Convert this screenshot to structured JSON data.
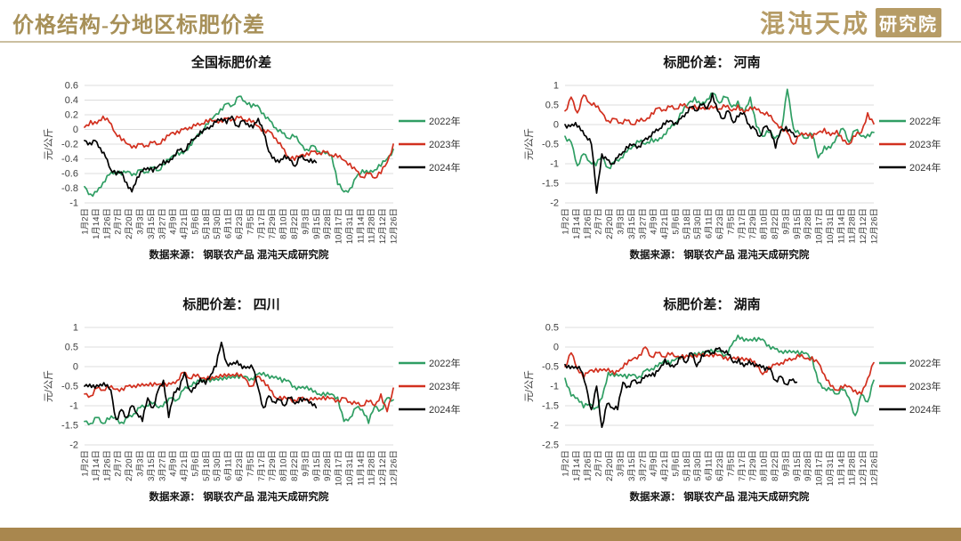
{
  "header": {
    "title": "价格结构-分地区标肥价差",
    "logo_text": "混沌天成",
    "logo_badge": "研究院"
  },
  "colors": {
    "accent_gold": "#A79058",
    "footer_band": "#A9874E",
    "series_2022": "#2F9E63",
    "series_2023": "#D2301F",
    "series_2024": "#000000",
    "gridline": "#DCDCDC"
  },
  "charts_shared": {
    "ylabel": "元/公斤",
    "legend": [
      "2022年",
      "2023年",
      "2024年"
    ],
    "source": "数据来源：  钢联农产品 混沌天成研究院",
    "categories": [
      "1月2日",
      "1月14日",
      "1月26日",
      "2月7日",
      "2月20日",
      "3月3日",
      "3月15日",
      "3月27日",
      "4月9日",
      "4月21日",
      "5月6日",
      "5月18日",
      "5月30日",
      "6月11日",
      "6月23日",
      "7月5日",
      "7月17日",
      "7月29日",
      "8月10日",
      "8月22日",
      "9月3日",
      "9月15日",
      "9月28日",
      "10月17日",
      "10月31日",
      "11月14日",
      "11月28日",
      "12月12日",
      "12月26日"
    ]
  },
  "chart_data": [
    {
      "type": "line",
      "title": "全国标肥价差",
      "ylabel": "元/公斤",
      "ylim": [
        -1,
        0.6
      ],
      "yticks": [
        "0.6",
        "0.4",
        "0.2",
        "0",
        "-0.2",
        "-0.4",
        "-0.6",
        "-0.8",
        "-1"
      ],
      "series": [
        {
          "name": "2022年",
          "color": "#2F9E63",
          "span": 1,
          "values": [
            -0.78,
            -0.88,
            -0.85,
            -0.72,
            -0.62,
            -0.58,
            -0.62,
            -0.57,
            -0.6,
            -0.55,
            -0.58,
            -0.52,
            -0.56,
            -0.48,
            -0.38,
            -0.3,
            -0.33,
            -0.22,
            -0.12,
            -0.03,
            0.07,
            0.18,
            0.28,
            0.35,
            0.33,
            0.45,
            0.38,
            0.3,
            0.33,
            0.22,
            0.12,
            0.02,
            -0.05,
            -0.12,
            -0.1,
            -0.2,
            -0.27,
            -0.22,
            -0.3,
            -0.33,
            -0.35,
            -0.75,
            -0.85,
            -0.8,
            -0.65,
            -0.55,
            -0.6,
            -0.55,
            -0.5,
            -0.4,
            -0.27
          ]
        },
        {
          "name": "2023年",
          "color": "#D2301F",
          "span": 1,
          "values": [
            0.03,
            0.12,
            0.08,
            0.18,
            0.1,
            -0.05,
            -0.15,
            -0.2,
            -0.22,
            -0.2,
            -0.22,
            -0.18,
            -0.2,
            -0.15,
            -0.05,
            -0.02,
            0,
            0.03,
            0.05,
            0.08,
            0.1,
            0.12,
            0.13,
            0.15,
            0.14,
            0.16,
            0.13,
            0.1,
            0.05,
            0,
            -0.03,
            -0.12,
            -0.25,
            -0.38,
            -0.42,
            -0.35,
            -0.32,
            -0.3,
            -0.32,
            -0.31,
            -0.35,
            -0.38,
            -0.42,
            -0.46,
            -0.56,
            -0.65,
            -0.6,
            -0.66,
            -0.6,
            -0.45,
            -0.2
          ]
        },
        {
          "name": "2024年",
          "color": "#000000",
          "span": 0.75,
          "values": [
            -0.15,
            -0.18,
            -0.15,
            -0.25,
            -0.38,
            -0.55,
            -0.62,
            -0.58,
            -0.72,
            -0.85,
            -0.65,
            -0.57,
            -0.52,
            -0.58,
            -0.5,
            -0.42,
            -0.45,
            -0.35,
            -0.28,
            -0.3,
            -0.2,
            -0.12,
            -0.02,
            0,
            0.05,
            0.1,
            0.15,
            0.08,
            0.18,
            0.05,
            0.12,
            0.08,
            0.02,
            0.15,
            -0.05,
            -0.3,
            -0.38,
            -0.45,
            -0.35,
            -0.42,
            -0.5,
            -0.38,
            -0.42,
            -0.4,
            -0.45
          ]
        }
      ]
    },
    {
      "type": "line",
      "title": "标肥价差： 河南",
      "ylabel": "元/公斤",
      "ylim": [
        -2,
        1
      ],
      "yticks": [
        "1",
        "0.5",
        "0",
        "-0.5",
        "-1",
        "-1.5",
        "-2"
      ],
      "series": [
        {
          "name": "2022年",
          "color": "#2F9E63",
          "span": 1,
          "values": [
            -0.3,
            -0.45,
            -1.05,
            -0.75,
            -0.95,
            -1.05,
            -0.8,
            -1.1,
            -0.95,
            -0.85,
            -0.7,
            -0.55,
            -0.45,
            -0.5,
            -0.35,
            -0.42,
            -0.25,
            -0.1,
            0.05,
            0.3,
            0.55,
            0.7,
            0.5,
            0.65,
            0.8,
            0.55,
            0.7,
            0.45,
            0.6,
            0.3,
            0.7,
            -0.05,
            -0.3,
            -0.2,
            -0.35,
            -0.15,
            0.9,
            -0.1,
            -0.25,
            -0.35,
            -0.25,
            -0.85,
            -0.55,
            -0.6,
            -0.3,
            -0.1,
            -0.45,
            -0.15,
            -0.3,
            -0.25,
            -0.2
          ]
        },
        {
          "name": "2023年",
          "color": "#D2301F",
          "span": 1,
          "values": [
            0.35,
            0.7,
            0.3,
            0.75,
            0.55,
            0.45,
            0.3,
            0.1,
            0.15,
            0.05,
            0.1,
            0,
            0.08,
            0.1,
            0.3,
            0.42,
            0.38,
            0.45,
            0.4,
            0.48,
            0.42,
            0.5,
            0.4,
            0.45,
            0.42,
            0.4,
            0.45,
            0.35,
            0.5,
            0.3,
            0.45,
            0.38,
            0.3,
            0.22,
            0.05,
            -0.05,
            -0.2,
            -0.5,
            -0.28,
            -0.22,
            -0.35,
            -0.2,
            -0.1,
            -0.28,
            -0.15,
            -0.42,
            -0.5,
            -0.3,
            -0.2,
            0.3,
            0.02
          ]
        },
        {
          "name": "2024年",
          "color": "#000000",
          "span": 0.75,
          "values": [
            0,
            -0.05,
            0.05,
            -0.15,
            -0.3,
            -0.5,
            -1.75,
            -0.75,
            -0.9,
            -1.0,
            -0.85,
            -0.7,
            -0.6,
            -0.5,
            -0.55,
            -0.4,
            -0.3,
            -0.2,
            -0.1,
            0,
            0.1,
            0.05,
            0.15,
            0.3,
            0.45,
            0.35,
            0.5,
            0.4,
            0.8,
            0.35,
            0.15,
            0.35,
            0.05,
            0.2,
            0.3,
            0,
            -0.1,
            -0.3,
            -0.05,
            -0.15,
            -0.6,
            -0.15,
            -0.05,
            -0.2,
            -0.3
          ]
        }
      ]
    },
    {
      "type": "line",
      "title": "标肥价差： 四川",
      "ylabel": "元/公斤",
      "ylim": [
        -2,
        1
      ],
      "yticks": [
        "1",
        "0.5",
        "0",
        "-0.5",
        "-1",
        "-1.5",
        "-2"
      ],
      "series": [
        {
          "name": "2022年",
          "color": "#2F9E63",
          "span": 1,
          "values": [
            -1.4,
            -1.45,
            -1.3,
            -1.45,
            -1.35,
            -1.3,
            -1.42,
            -1.3,
            -1.2,
            -1.05,
            -1,
            -0.95,
            -1.05,
            -0.9,
            -0.8,
            -0.85,
            -0.6,
            -0.5,
            -0.45,
            -0.35,
            -0.3,
            -0.35,
            -0.28,
            -0.32,
            -0.25,
            -0.3,
            -0.25,
            -0.3,
            -0.2,
            -0.15,
            -0.3,
            -0.25,
            -0.4,
            -0.35,
            -0.5,
            -0.55,
            -0.5,
            -0.65,
            -0.7,
            -0.75,
            -0.7,
            -0.78,
            -1.4,
            -1.3,
            -1.05,
            -1.1,
            -1.45,
            -1,
            -1.1,
            -0.8,
            -0.85
          ]
        },
        {
          "name": "2023年",
          "color": "#D2301F",
          "span": 1,
          "values": [
            -0.7,
            -0.75,
            -0.55,
            -0.6,
            -0.55,
            -0.58,
            -0.55,
            -0.5,
            -0.48,
            -0.5,
            -0.45,
            -0.5,
            -0.45,
            -0.42,
            -0.45,
            -0.35,
            -0.15,
            -0.3,
            -0.25,
            -0.3,
            -0.25,
            -0.3,
            -0.2,
            -0.25,
            -0.2,
            -0.25,
            -0.3,
            -0.5,
            -0.25,
            -0.35,
            -0.6,
            -0.8,
            -0.85,
            -0.8,
            -0.85,
            -0.8,
            -0.82,
            -0.85,
            -0.8,
            -0.85,
            -0.8,
            -0.85,
            -0.8,
            -0.9,
            -0.95,
            -1,
            -0.9,
            -1,
            -0.7,
            -1.15,
            -0.55
          ]
        },
        {
          "name": "2024年",
          "color": "#000000",
          "span": 0.75,
          "values": [
            -0.5,
            -0.45,
            -0.55,
            -0.45,
            -0.5,
            -0.6,
            -1.35,
            -1.1,
            -1.3,
            -1,
            -1.2,
            -1.4,
            -0.8,
            -1.05,
            -0.6,
            -0.35,
            -1.3,
            -0.65,
            -0.6,
            -0.15,
            -0.6,
            -0.55,
            -0.3,
            -0.45,
            -0.2,
            0,
            0.62,
            0.1,
            0.05,
            0.15,
            -0.05,
            0,
            -0.05,
            -0.55,
            -1.05,
            -0.75,
            -0.9,
            -0.85,
            -1,
            -0.8,
            -0.95,
            -0.8,
            -0.85,
            -0.9,
            -1.05
          ]
        }
      ]
    },
    {
      "type": "line",
      "title": "标肥价差： 湖南",
      "ylabel": "元/公斤",
      "ylim": [
        -2.5,
        0.5
      ],
      "yticks": [
        "0.5",
        "0",
        "-0.5",
        "-1",
        "-1.5",
        "-2",
        "-2.5"
      ],
      "series": [
        {
          "name": "2022年",
          "color": "#2F9E63",
          "span": 1,
          "values": [
            -0.8,
            -1.25,
            -1.3,
            -1.55,
            -1.45,
            -1.55,
            -1.3,
            -0.65,
            -0.75,
            -0.7,
            -0.8,
            -0.7,
            -0.75,
            -0.6,
            -0.55,
            -0.5,
            -0.35,
            -0.45,
            -0.3,
            -0.2,
            -0.25,
            -0.15,
            -0.2,
            -0.1,
            -0.15,
            -0.1,
            -0.2,
            0.05,
            0.3,
            0.15,
            0.2,
            0.15,
            0.2,
            0.05,
            -0.05,
            -0.1,
            -0.15,
            -0.1,
            -0.2,
            -0.15,
            -0.25,
            -0.9,
            -1.05,
            -1.1,
            -1.2,
            -1.1,
            -1.3,
            -1.75,
            -1.2,
            -1.4,
            -0.85
          ]
        },
        {
          "name": "2023年",
          "color": "#D2301F",
          "span": 1,
          "values": [
            -0.5,
            -0.15,
            -0.55,
            -0.8,
            -0.6,
            -0.55,
            -0.6,
            -0.55,
            -0.7,
            -0.55,
            -0.45,
            -0.3,
            -0.2,
            0,
            -0.25,
            -0.15,
            -0.25,
            -0.2,
            -0.25,
            -0.2,
            -0.25,
            -0.2,
            -0.22,
            -0.2,
            -0.25,
            -0.2,
            -0.25,
            -0.3,
            -0.25,
            -0.35,
            -0.3,
            -0.5,
            -0.7,
            -0.5,
            -0.45,
            -0.4,
            -0.35,
            -0.3,
            -0.25,
            -0.3,
            -0.25,
            -0.4,
            -0.7,
            -1,
            -1.1,
            -1.05,
            -1,
            -1.1,
            -1.2,
            -0.8,
            -0.4
          ]
        },
        {
          "name": "2024年",
          "color": "#000000",
          "span": 0.75,
          "values": [
            -0.45,
            -0.55,
            -0.5,
            -0.6,
            -1,
            -1.6,
            -1,
            -2.05,
            -1.45,
            -1.55,
            -1.6,
            -0.9,
            -1,
            -0.85,
            -0.9,
            -0.8,
            -0.7,
            -0.75,
            -0.55,
            -0.3,
            -0.5,
            -0.45,
            -0.25,
            -0.4,
            -0.15,
            -0.5,
            -0.2,
            -0.1,
            -0.15,
            -0.05,
            -0.1,
            -0.2,
            -0.4,
            -0.3,
            -0.5,
            -0.35,
            -0.5,
            -0.45,
            -0.6,
            -0.55,
            -0.85,
            -0.75,
            -0.95,
            -0.85,
            -0.9
          ]
        }
      ]
    }
  ]
}
